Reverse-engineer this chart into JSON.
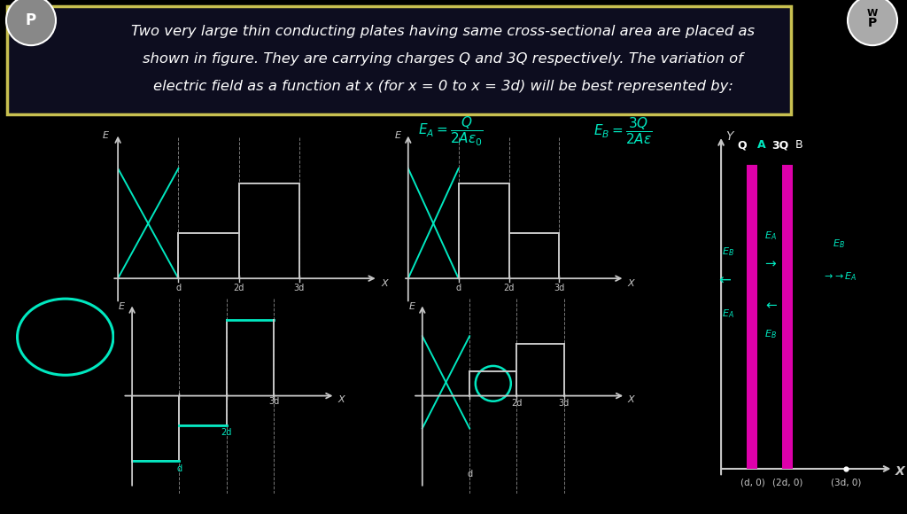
{
  "bg_color": "#000000",
  "header_bg": "#0d0d1f",
  "header_border": "#c8c050",
  "header_text_color": "#ffffff",
  "label_bg": "#f0e890",
  "label_border": "#b8a830",
  "graph_color": "#c8c8c8",
  "cyan_color": "#00e8c0",
  "pink_color": "#cc0066",
  "magenta_bar": "#dd00aa",
  "header_text_line1": "Two very large thin conducting plates having same cross-sectional area are placed as",
  "header_text_line2": "shown in figure. They are carrying charges Q and 3Q respectively. The variation of",
  "header_text_line3": "electric field as a function at x (for x = 0 to x = 3d) will be best represented by:"
}
